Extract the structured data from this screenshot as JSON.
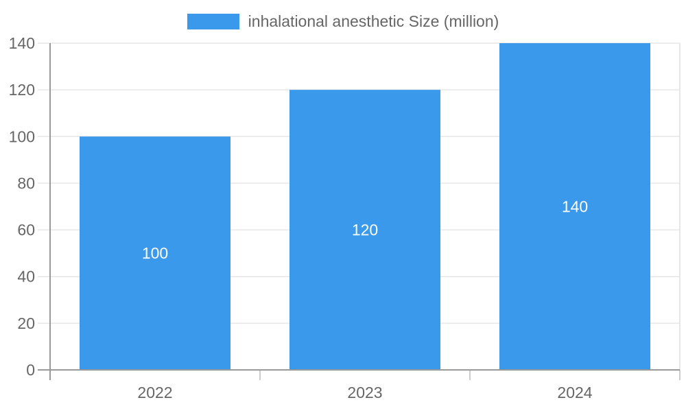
{
  "chart_data": {
    "type": "bar",
    "title": "",
    "legend": "inhalational anesthetic Size (million)",
    "legend_position": "top",
    "categories": [
      "2022",
      "2023",
      "2024"
    ],
    "series": [
      {
        "name": "inhalational anesthetic Size (million)",
        "values": [
          100,
          120,
          140
        ]
      }
    ],
    "bar_value_labels": [
      "100",
      "120",
      "140"
    ],
    "xlabel": "",
    "ylabel": "",
    "y_ticks": [
      0,
      20,
      40,
      60,
      80,
      100,
      120,
      140
    ],
    "ylim": [
      0,
      140
    ],
    "grid": true,
    "colors": {
      "bar": "#3b99ec",
      "grid": "#e6e6e6",
      "axis": "#999999",
      "tick_label": "#666666",
      "bar_label": "#ffffff",
      "background": "#ffffff"
    }
  }
}
